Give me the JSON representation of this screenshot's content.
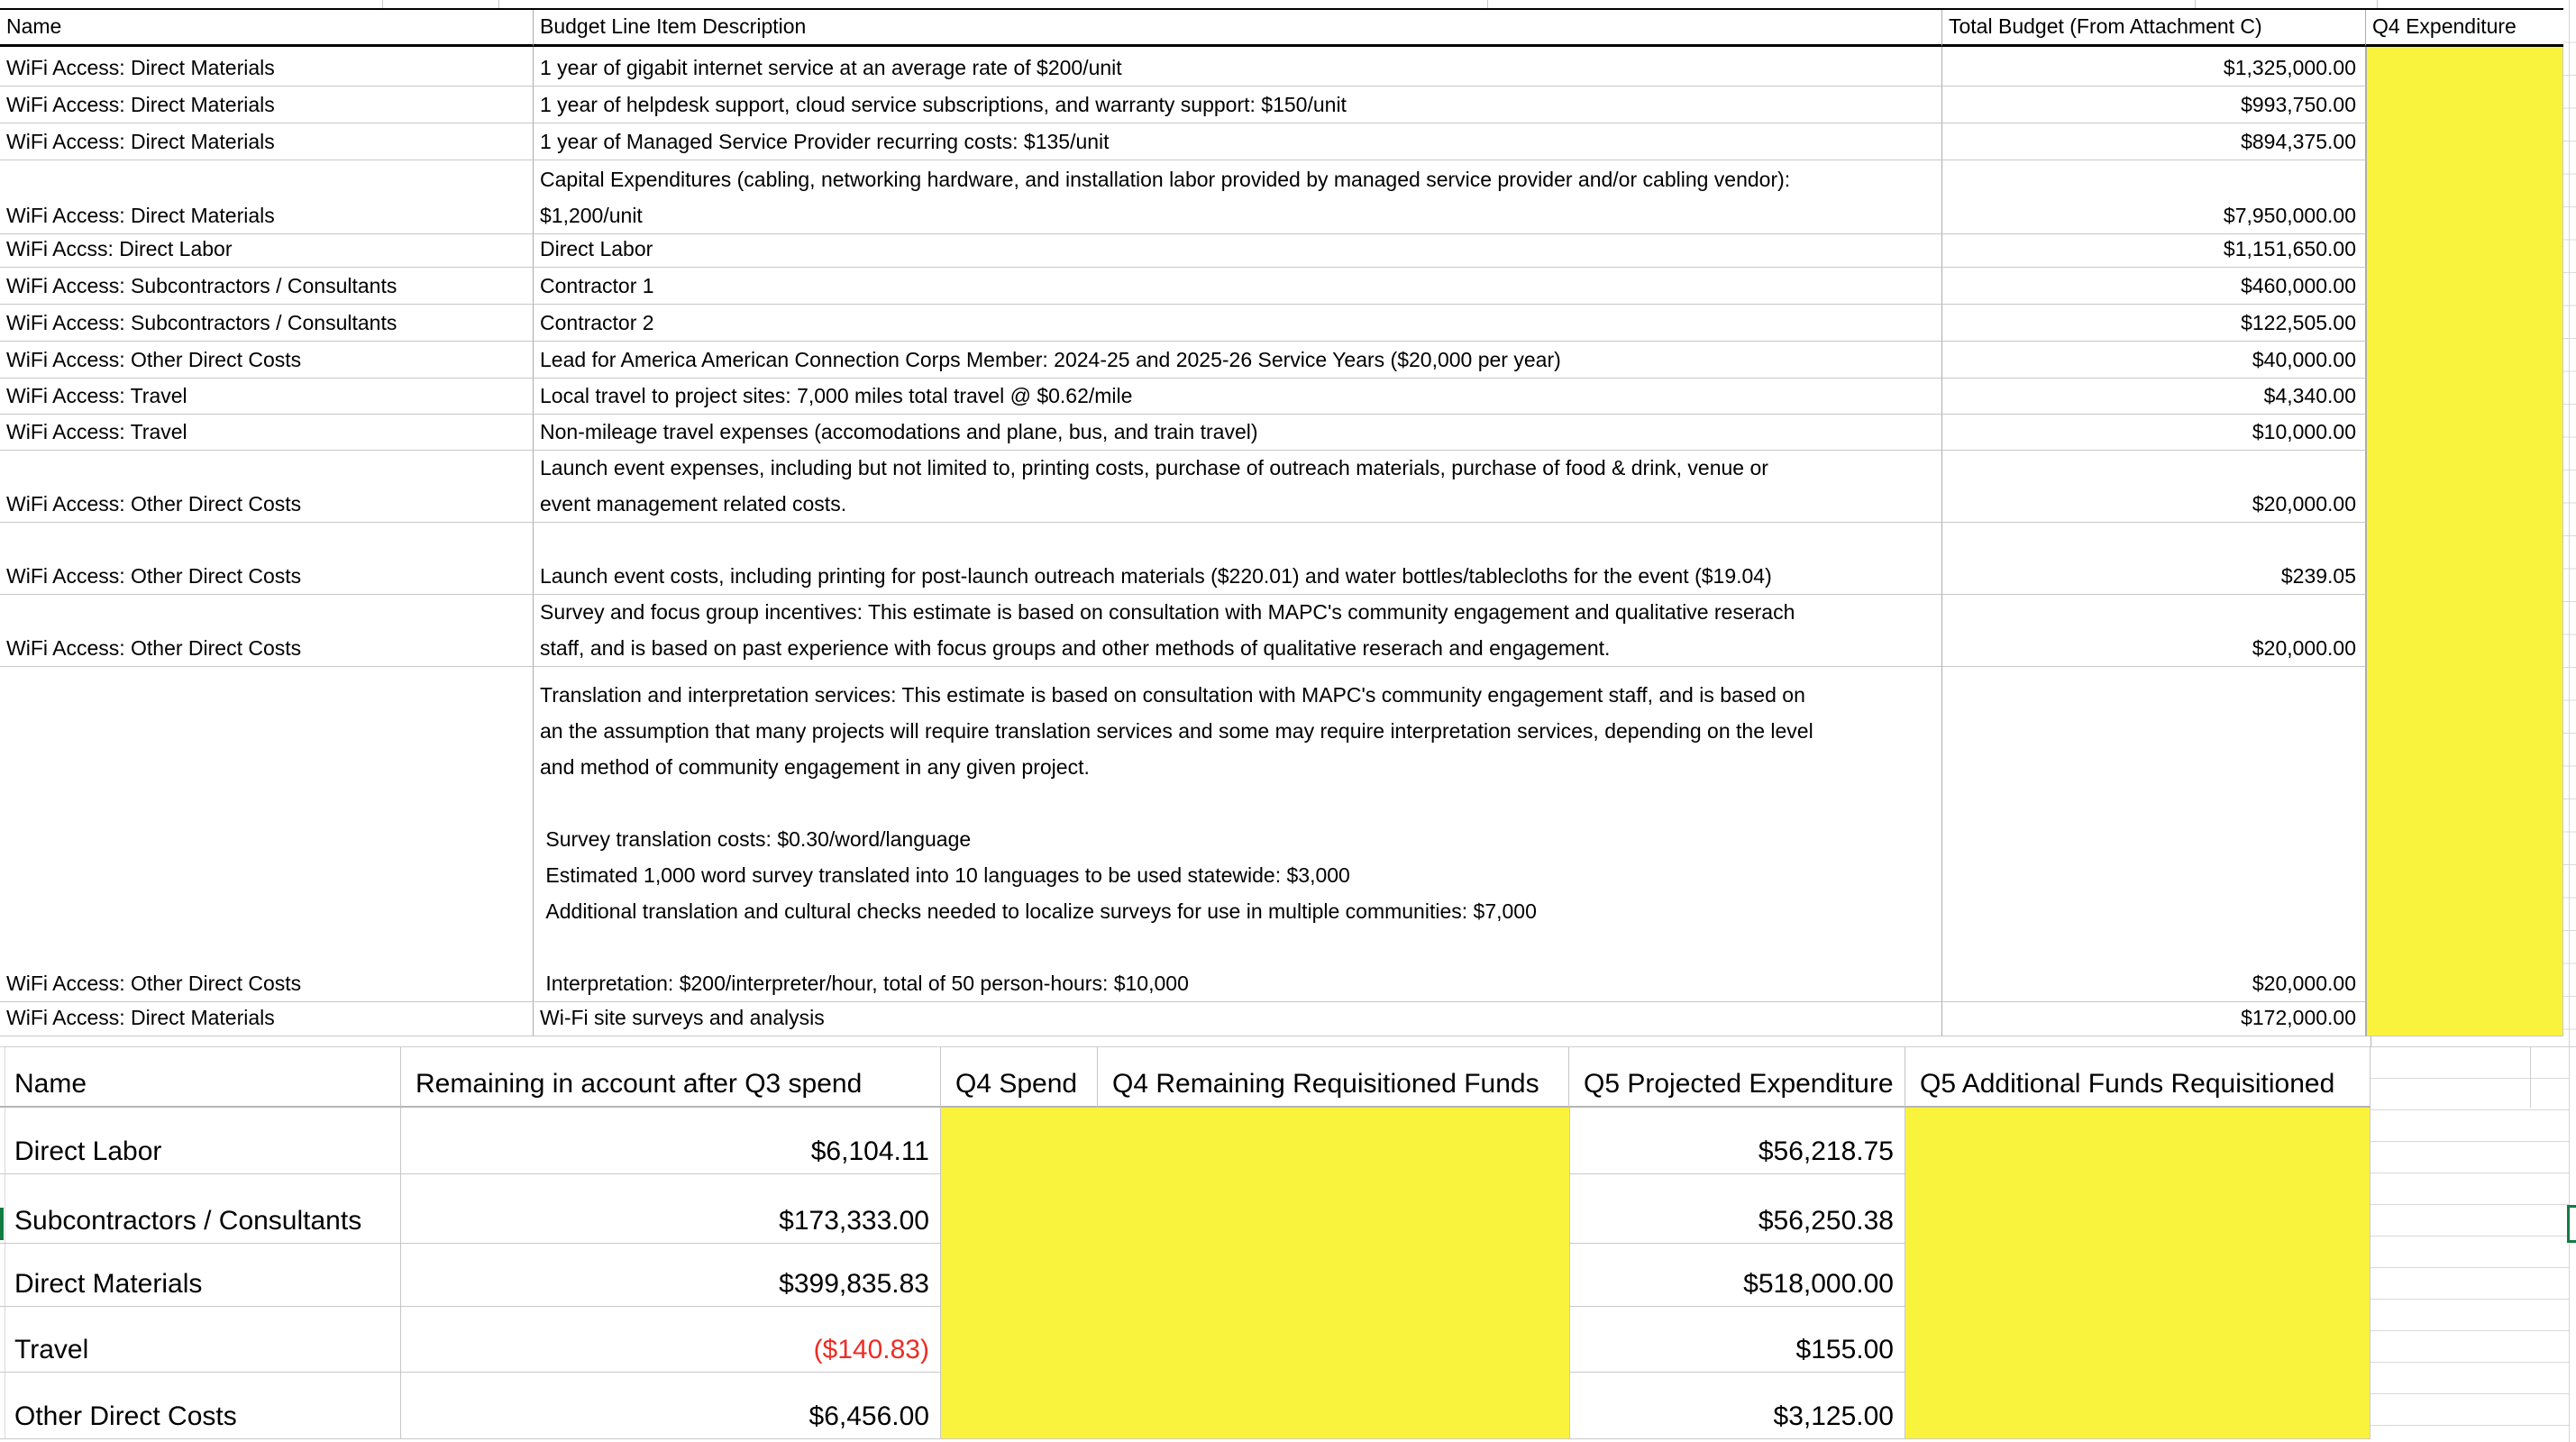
{
  "colors": {
    "highlight_yellow": "#faf33d",
    "negative_red": "#ee2c24",
    "selection_green": "#107c41"
  },
  "top_table": {
    "headers": [
      "Name",
      "Budget Line Item Description",
      "Total Budget (From Attachment C)",
      "Q4 Expenditure"
    ],
    "rows": [
      {
        "name": "WiFi Access: Direct Materials",
        "description": "1 year of gigabit internet service at an average rate of $200/unit",
        "total_budget": "$1,325,000.00"
      },
      {
        "name": "WiFi Access: Direct Materials",
        "description": "1 year of helpdesk support, cloud service subscriptions, and warranty support: $150/unit",
        "total_budget": "$993,750.00"
      },
      {
        "name": "WiFi Access: Direct Materials",
        "description": "1 year of Managed Service Provider recurring costs: $135/unit",
        "total_budget": "$894,375.00"
      },
      {
        "name": "WiFi Access: Direct Materials",
        "description": "Capital Expenditures (cabling, networking hardware, and installation labor provided by managed service provider and/or cabling vendor):\n$1,200/unit",
        "total_budget": "$7,950,000.00"
      },
      {
        "name": "WiFi Accss: Direct Labor",
        "description": "Direct Labor",
        "total_budget": "$1,151,650.00"
      },
      {
        "name": "WiFi Access: Subcontractors / Consultants",
        "description": "Contractor 1",
        "total_budget": "$460,000.00"
      },
      {
        "name": "WiFi Access: Subcontractors / Consultants",
        "description": "Contractor 2",
        "total_budget": "$122,505.00"
      },
      {
        "name": "WiFi Access: Other Direct Costs",
        "description": "Lead for America American Connection Corps Member: 2024-25 and 2025-26 Service Years ($20,000 per year)",
        "total_budget": "$40,000.00"
      },
      {
        "name": "WiFi Access: Travel",
        "description": "Local travel to project sites: 7,000 miles total travel @ $0.62/mile",
        "total_budget": "$4,340.00"
      },
      {
        "name": "WiFi Access: Travel",
        "description": "Non-mileage travel expenses (accomodations and plane, bus, and train travel)",
        "total_budget": "$10,000.00"
      },
      {
        "name": "WiFi Access: Other Direct Costs",
        "description": "Launch event expenses, including but not limited to, printing costs, purchase of outreach materials, purchase of food & drink, venue or\nevent management related costs.",
        "total_budget": "$20,000.00"
      },
      {
        "name": "WiFi Access: Other Direct Costs",
        "description": "Launch event costs, including printing for post-launch outreach materials ($220.01) and water bottles/tablecloths for the event ($19.04)",
        "total_budget": "$239.05"
      },
      {
        "name": "WiFi Access: Other Direct Costs",
        "description": "Survey and focus group incentives: This estimate is based on consultation with MAPC's community engagement and qualitative reserach\nstaff, and is based on past experience with focus groups and other methods of qualitative reserach and engagement.",
        "total_budget": "$20,000.00"
      },
      {
        "name": "WiFi Access: Other Direct Costs",
        "description": "Translation and interpretation services: This estimate is based on consultation with MAPC's community engagement staff, and is based on\nan the assumption that many projects will require translation services and some may require interpretation services, depending on the level\nand method of community engagement in any given project.\n\n Survey translation costs: $0.30/word/language\n Estimated 1,000 word survey translated into 10 languages to be used statewide: $3,000\n Additional translation and cultural checks needed to localize surveys for use in multiple communities: $7,000\n\n Interpretation: $200/interpreter/hour, total of 50 person-hours: $10,000",
        "total_budget": "$20,000.00"
      },
      {
        "name": "WiFi Access: Direct Materials",
        "description": "Wi-Fi site surveys and analysis",
        "total_budget": "$172,000.00"
      }
    ]
  },
  "bottom_table": {
    "headers": [
      "Name",
      "Remaining in account after Q3 spend",
      "Q4 Spend",
      "Q4 Remaining Requisitioned Funds",
      "Q5 Projected Expenditure",
      "Q5 Additional Funds Requisitioned"
    ],
    "rows": [
      {
        "name": "Direct Labor",
        "remaining_q3": "$6,104.11",
        "q5_projected": "$56,218.75",
        "negative": false
      },
      {
        "name": "Subcontractors / Consultants",
        "remaining_q3": "$173,333.00",
        "q5_projected": "$56,250.38",
        "negative": false
      },
      {
        "name": "Direct Materials",
        "remaining_q3": "$399,835.83",
        "q5_projected": "$518,000.00",
        "negative": false
      },
      {
        "name": "Travel",
        "remaining_q3": "($140.83)",
        "q5_projected": "$155.00",
        "negative": true
      },
      {
        "name": "Other Direct Costs",
        "remaining_q3": "$6,456.00",
        "q5_projected": "$3,125.00",
        "negative": false
      }
    ]
  }
}
